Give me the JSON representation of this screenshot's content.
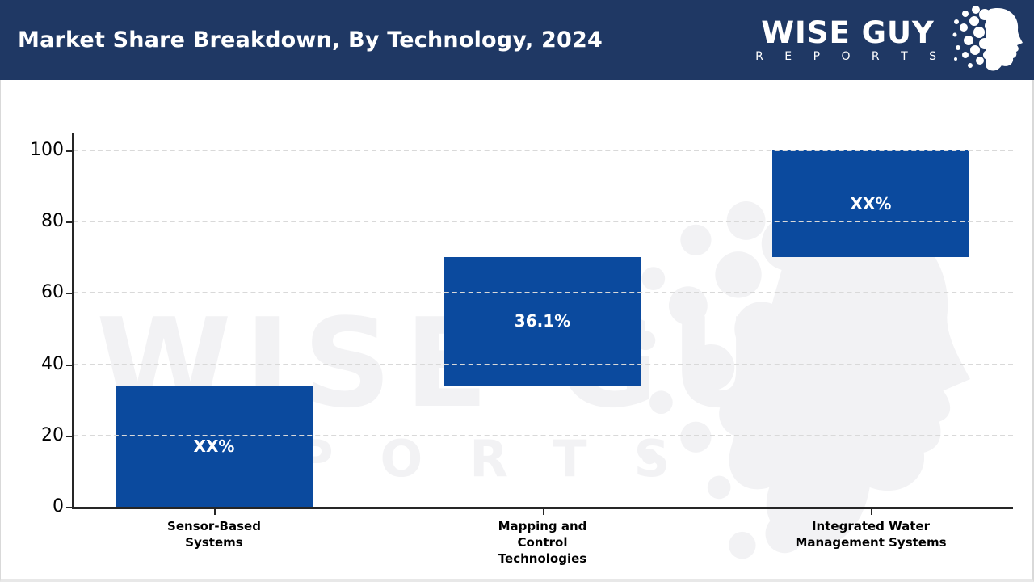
{
  "header": {
    "title": "Market Share Breakdown, By Technology, 2024",
    "logo": {
      "line1": "WISE GUY",
      "line2": "R E P O R T S"
    }
  },
  "watermark": {
    "line1": "WISE GUY",
    "line2": "REPORTS"
  },
  "colors": {
    "header_bg": "#1f3864",
    "bar": "#0b4a9e",
    "bar_label": "#ffffff",
    "grid": "#d9d9d9",
    "axis": "#262626",
    "watermark": "#f2f2f4"
  },
  "chart_data": {
    "type": "bar",
    "subtype": "waterfall",
    "title": "Market Share Breakdown, By Technology, 2024",
    "categories": [
      "Sensor-Based Systems",
      "Mapping and Control Technologies",
      "Integrated Water Management Systems"
    ],
    "category_label_lines": [
      [
        "Sensor-Based",
        "Systems"
      ],
      [
        "Mapping and",
        "Control",
        "Technologies"
      ],
      [
        "Integrated Water",
        "Management Systems"
      ]
    ],
    "segments": [
      {
        "start": 0,
        "end": 34,
        "size_est": 34,
        "label": "XX%"
      },
      {
        "start": 34,
        "end": 70.1,
        "size_est": 36.1,
        "label": "36.1%"
      },
      {
        "start": 70.1,
        "end": 100,
        "size_est": 29.9,
        "label": "XX%"
      }
    ],
    "yticks": [
      0,
      20,
      40,
      60,
      80,
      100
    ],
    "ylim": [
      0,
      104.8
    ],
    "xlabel": "",
    "ylabel": "",
    "legend": "none",
    "grid": {
      "horizontal": true,
      "style": "dashed",
      "drawn_above_bars": true
    }
  }
}
